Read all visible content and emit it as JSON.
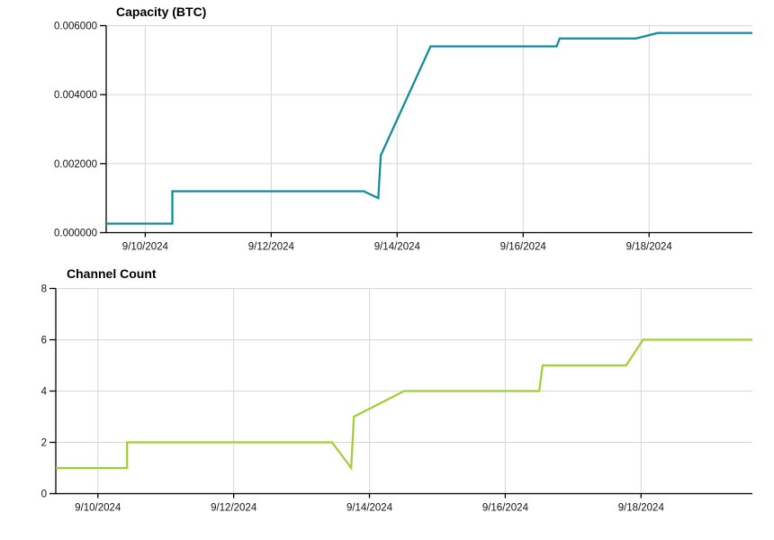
{
  "page": {
    "background": "#ffffff",
    "grid_color": "#d6d6d6",
    "axis_color": "#000000",
    "label_color": "#111111"
  },
  "chart_data": [
    {
      "type": "line",
      "title": "Capacity (BTC)",
      "color": "#0f8c9b",
      "grid": true,
      "legend_position": "none",
      "x_axis": {
        "unit": "days since 9/10/2024",
        "range": [
          -0.62,
          9.64
        ],
        "ticks": [
          {
            "pos": 0,
            "label": "9/10/2024"
          },
          {
            "pos": 2,
            "label": "9/12/2024"
          },
          {
            "pos": 4,
            "label": "9/14/2024"
          },
          {
            "pos": 6,
            "label": "9/16/2024"
          },
          {
            "pos": 8,
            "label": "9/18/2024"
          }
        ]
      },
      "y_axis": {
        "unit": "BTC",
        "range": [
          0,
          0.006
        ],
        "ticks": [
          {
            "pos": 0,
            "label": "0.000000"
          },
          {
            "pos": 0.002,
            "label": "0.002000"
          },
          {
            "pos": 0.004,
            "label": "0.004000"
          },
          {
            "pos": 0.006,
            "label": "0.006000"
          }
        ]
      },
      "series": [
        {
          "name": "Capacity (BTC)",
          "points": [
            [
              -0.62,
              0.00026
            ],
            [
              0.43,
              0.00026
            ],
            [
              0.43,
              0.0012
            ],
            [
              3.47,
              0.0012
            ],
            [
              3.7,
              0.001
            ],
            [
              3.74,
              0.00224
            ],
            [
              4.53,
              0.0054
            ],
            [
              6.53,
              0.0054
            ],
            [
              6.58,
              0.00563
            ],
            [
              7.79,
              0.00563
            ],
            [
              8.14,
              0.00579
            ],
            [
              9.64,
              0.00579
            ]
          ]
        }
      ]
    },
    {
      "type": "line",
      "title": "Channel Count",
      "color": "#a2ce39",
      "grid": true,
      "legend_position": "none",
      "x_axis": {
        "unit": "days since 9/10/2024",
        "range": [
          -0.62,
          9.64
        ],
        "ticks": [
          {
            "pos": 0,
            "label": "9/10/2024"
          },
          {
            "pos": 2,
            "label": "9/12/2024"
          },
          {
            "pos": 4,
            "label": "9/14/2024"
          },
          {
            "pos": 6,
            "label": "9/16/2024"
          },
          {
            "pos": 8,
            "label": "9/18/2024"
          }
        ]
      },
      "y_axis": {
        "unit": "channels",
        "range": [
          0,
          8
        ],
        "ticks": [
          {
            "pos": 0,
            "label": "0"
          },
          {
            "pos": 2,
            "label": "2"
          },
          {
            "pos": 4,
            "label": "4"
          },
          {
            "pos": 6,
            "label": "6"
          },
          {
            "pos": 8,
            "label": "8"
          }
        ]
      },
      "series": [
        {
          "name": "Channel Count",
          "points": [
            [
              -0.62,
              1
            ],
            [
              0.43,
              1
            ],
            [
              0.43,
              2
            ],
            [
              3.45,
              2
            ],
            [
              3.73,
              1
            ],
            [
              3.77,
              3
            ],
            [
              4.51,
              4
            ],
            [
              6.5,
              4
            ],
            [
              6.55,
              5
            ],
            [
              7.78,
              5
            ],
            [
              8.03,
              6
            ],
            [
              9.64,
              6
            ]
          ]
        }
      ]
    }
  ]
}
